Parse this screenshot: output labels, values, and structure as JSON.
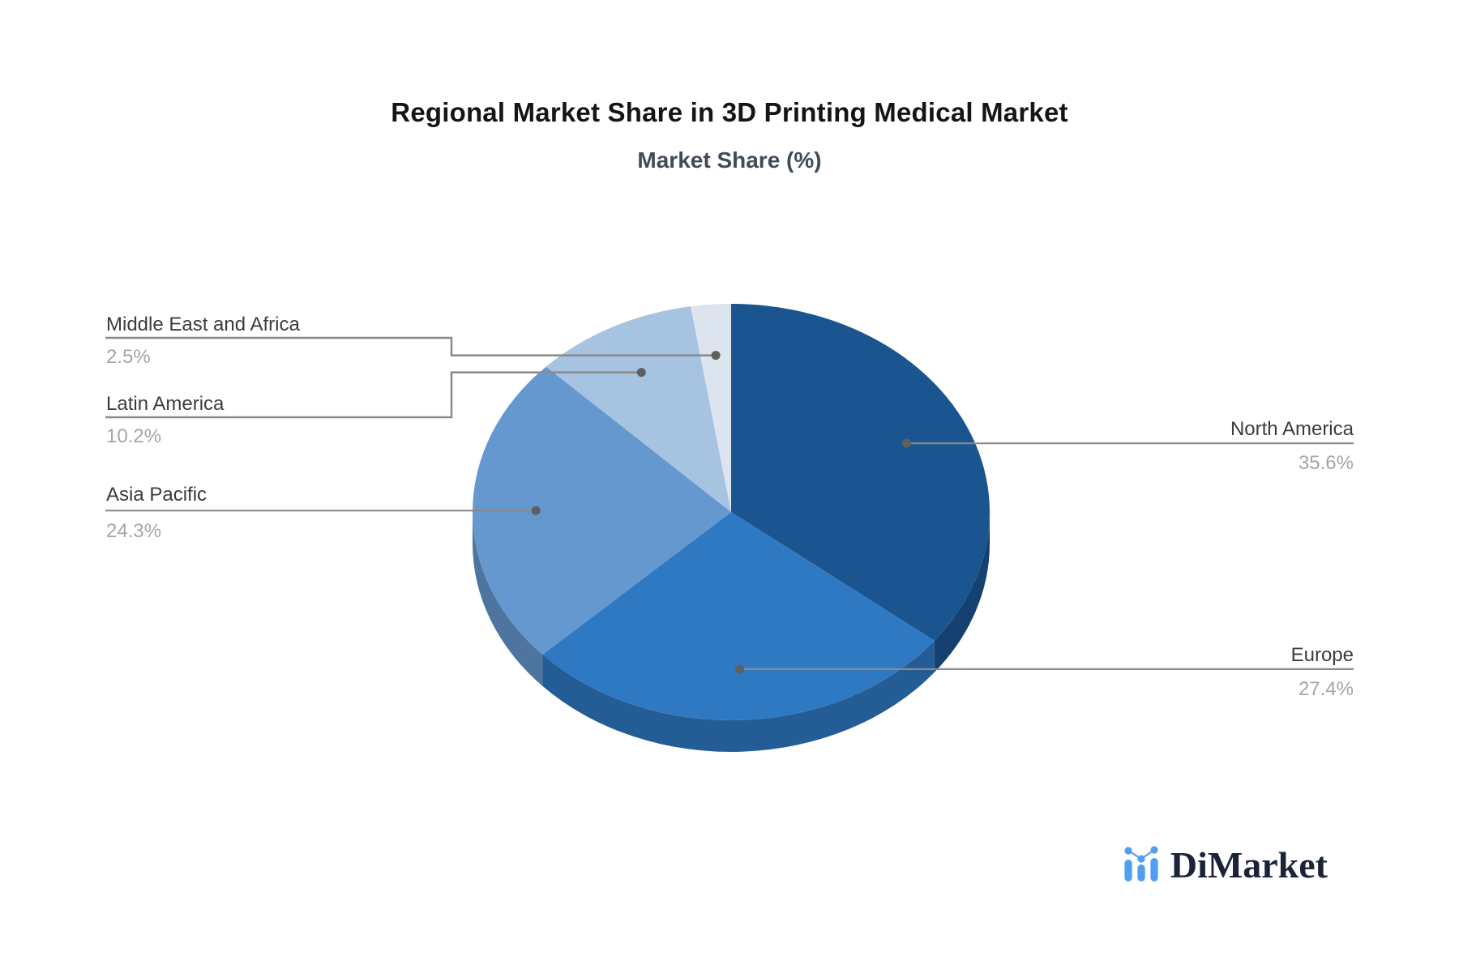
{
  "page": {
    "background": "#ffffff"
  },
  "header": {
    "title": "Regional Market Share in 3D Printing Medical Market",
    "subtitle": "Market Share (%)"
  },
  "chart_data": {
    "type": "pie",
    "style": "3d",
    "title": "Regional Market Share in 3D Printing Medical Market",
    "subtitle": "Market Share (%)",
    "unit": "%",
    "direction": "clockwise",
    "start_angle_deg": 0,
    "legend_position": "callout-labels",
    "slices": [
      {
        "label": "North America",
        "value": 35.6,
        "color": "#1a5590"
      },
      {
        "label": "Europe",
        "value": 27.4,
        "color": "#2f79c2"
      },
      {
        "label": "Asia Pacific",
        "value": 24.3,
        "color": "#6598cf"
      },
      {
        "label": "Latin America",
        "value": 10.2,
        "color": "#a6c3e1"
      },
      {
        "label": "Middle East and Africa",
        "value": 2.5,
        "color": "#dce4ef"
      }
    ],
    "callout": {
      "line_color": "#8a8a8a",
      "dot_color": "#5f5f5f",
      "name_color": "#3c3c3c",
      "value_color": "#a5a5a5",
      "value_format": "{value}%"
    }
  },
  "branding": {
    "logo_text": "DiMarket",
    "logo_color": "#1a2338",
    "icon_color": "#4f9ef0"
  }
}
